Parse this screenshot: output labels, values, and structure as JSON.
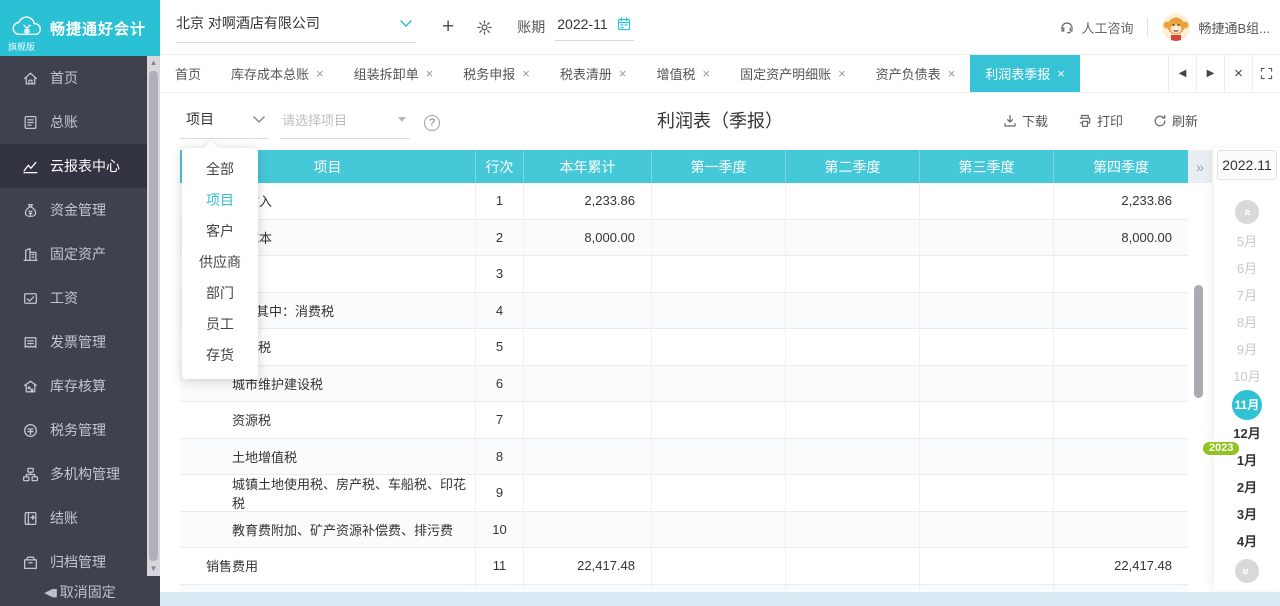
{
  "app": {
    "logo_title": "畅捷通好会计",
    "logo_edition": "旗舰版"
  },
  "topbar": {
    "company": "北京 对啊酒店有限公司",
    "period_label": "账期",
    "period_value": "2022-11",
    "support_label": "人工咨询",
    "user_name": "畅捷通B组..."
  },
  "sidebar": {
    "items": [
      {
        "label": "首页",
        "icon": "home"
      },
      {
        "label": "总账",
        "icon": "ledger"
      },
      {
        "label": "云报表中心",
        "icon": "cloud-report",
        "active": true
      },
      {
        "label": "资金管理",
        "icon": "funds"
      },
      {
        "label": "固定资产",
        "icon": "fixed-assets"
      },
      {
        "label": "工资",
        "icon": "payroll"
      },
      {
        "label": "发票管理",
        "icon": "invoice"
      },
      {
        "label": "库存核算",
        "icon": "inventory"
      },
      {
        "label": "税务管理",
        "icon": "tax"
      },
      {
        "label": "多机构管理",
        "icon": "multi-org"
      },
      {
        "label": "结账",
        "icon": "closing"
      },
      {
        "label": "归档管理",
        "icon": "archive"
      }
    ],
    "unpin_label": "取消固定"
  },
  "tabs": {
    "items": [
      {
        "label": "首页",
        "closable": false
      },
      {
        "label": "库存成本总账",
        "closable": true
      },
      {
        "label": "组装拆卸单",
        "closable": true
      },
      {
        "label": "税务申报",
        "closable": true
      },
      {
        "label": "税表清册",
        "closable": true
      },
      {
        "label": "增值税",
        "closable": true
      },
      {
        "label": "固定资产明细账",
        "closable": true
      },
      {
        "label": "资产负债表",
        "closable": true
      },
      {
        "label": "利润表季报",
        "closable": true,
        "active": true
      }
    ]
  },
  "toolbar": {
    "filter_type": "项目",
    "filter_placeholder": "请选择项目",
    "title": "利润表（季报）",
    "actions": [
      {
        "label": "下载",
        "icon": "download"
      },
      {
        "label": "打印",
        "icon": "print"
      },
      {
        "label": "刷新",
        "icon": "refresh"
      }
    ]
  },
  "filter_dropdown": {
    "items": [
      {
        "label": "全部"
      },
      {
        "label": "项目",
        "selected": true
      },
      {
        "label": "客户"
      },
      {
        "label": "供应商"
      },
      {
        "label": "部门"
      },
      {
        "label": "员工"
      },
      {
        "label": "存货"
      }
    ]
  },
  "report": {
    "columns": [
      "项目",
      "行次",
      "本年累计",
      "第一季度",
      "第二季度",
      "第三季度",
      "第四季度"
    ],
    "rows": [
      {
        "item": "一、营业收入",
        "indent": 0,
        "line": "1",
        "ytd": "2,233.86",
        "q1": "",
        "q2": "",
        "q3": "",
        "q4": "2,233.86"
      },
      {
        "item": "减：营业成本",
        "indent": 0,
        "line": "2",
        "ytd": "8,000.00",
        "q1": "",
        "q2": "",
        "q3": "",
        "q4": "8,000.00"
      },
      {
        "item": "税金及附加",
        "indent": 0,
        "line": "3",
        "ytd": "",
        "q1": "",
        "q2": "",
        "q3": "",
        "q4": ""
      },
      {
        "item": "其中：消费税",
        "indent": 3,
        "line": "4",
        "ytd": "",
        "q1": "",
        "q2": "",
        "q3": "",
        "q4": ""
      },
      {
        "item": "营业税",
        "indent": 2,
        "line": "5",
        "ytd": "",
        "q1": "",
        "q2": "",
        "q3": "",
        "q4": ""
      },
      {
        "item": "城市维护建设税",
        "indent": 2,
        "line": "6",
        "ytd": "",
        "q1": "",
        "q2": "",
        "q3": "",
        "q4": ""
      },
      {
        "item": "资源税",
        "indent": 2,
        "line": "7",
        "ytd": "",
        "q1": "",
        "q2": "",
        "q3": "",
        "q4": ""
      },
      {
        "item": "土地增值税",
        "indent": 2,
        "line": "8",
        "ytd": "",
        "q1": "",
        "q2": "",
        "q3": "",
        "q4": ""
      },
      {
        "item": "城镇土地使用税、房产税、车船税、印花税",
        "indent": 2,
        "line": "9",
        "ytd": "",
        "q1": "",
        "q2": "",
        "q3": "",
        "q4": ""
      },
      {
        "item": "教育费附加、矿产资源补偿费、排污费",
        "indent": 2,
        "line": "10",
        "ytd": "",
        "q1": "",
        "q2": "",
        "q3": "",
        "q4": ""
      },
      {
        "item": "销售费用",
        "indent": 1,
        "line": "11",
        "ytd": "22,417.48",
        "q1": "",
        "q2": "",
        "q3": "",
        "q4": "22,417.48"
      },
      {
        "item": "",
        "indent": 1,
        "line": "",
        "ytd": "",
        "q1": "",
        "q2": "",
        "q3": "",
        "q4": ""
      }
    ]
  },
  "month_panel": {
    "current": "2022.11",
    "year_badge": "2023",
    "months": [
      {
        "label": "5月",
        "disabled": true
      },
      {
        "label": "6月",
        "disabled": true
      },
      {
        "label": "7月",
        "disabled": true
      },
      {
        "label": "8月",
        "disabled": true
      },
      {
        "label": "9月",
        "disabled": true
      },
      {
        "label": "10月",
        "disabled": true
      },
      {
        "label": "11月",
        "selected": true
      },
      {
        "label": "12月"
      },
      {
        "label": "1月"
      },
      {
        "label": "2月"
      },
      {
        "label": "3月"
      },
      {
        "label": "4月"
      }
    ]
  },
  "glyphs": {
    "plus": "+",
    "help": "?",
    "expander": "»",
    "chevron_double": "»",
    "tab_back": "◀",
    "tab_forward": "▶",
    "tab_close": "×",
    "close": "×",
    "scroll_up": "▲",
    "scroll_down": "▼",
    "unpin": "◀▮"
  },
  "colors": {
    "accent": "#2fc2d4",
    "table_header": "#45c8d8",
    "sidebar_bg": "#40414f",
    "sidebar_active": "#313340",
    "year_badge": "#8fc31f",
    "bottom_strip": "#d7e9f3"
  }
}
